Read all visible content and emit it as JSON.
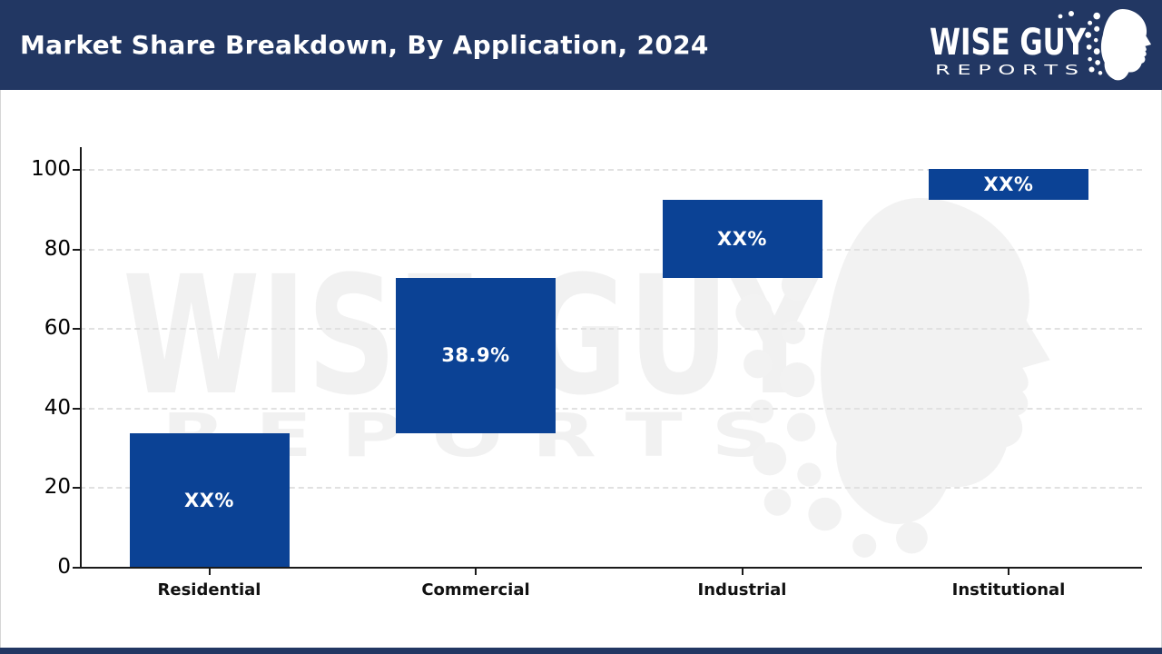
{
  "header": {
    "title": "Market Share Breakdown, By Application, 2024",
    "logo": {
      "line1": "WISE GUY",
      "line2": "R E P O R T S"
    }
  },
  "watermark": {
    "line1": "WISE GUY",
    "line2": "R E P O R T S"
  },
  "chart_data": {
    "type": "bar",
    "subtype": "floating-waterfall",
    "title": "Market Share Breakdown, By Application, 2024",
    "categories": [
      "Residential",
      "Commercial",
      "Industrial",
      "Institutional"
    ],
    "bars": [
      {
        "category": "Residential",
        "start": 0,
        "end": 33.9,
        "label": "XX%"
      },
      {
        "category": "Commercial",
        "start": 33.9,
        "end": 72.8,
        "label": "38.9%"
      },
      {
        "category": "Industrial",
        "start": 72.8,
        "end": 92.5,
        "label": "XX%"
      },
      {
        "category": "Institutional",
        "start": 92.5,
        "end": 100.2,
        "label": "XX%"
      }
    ],
    "yticks": [
      0,
      20,
      40,
      60,
      80,
      100
    ],
    "ylim": [
      0,
      105
    ],
    "xlabel": "",
    "ylabel": "",
    "grid": "horizontal-dashed",
    "legend": "none"
  },
  "colors": {
    "header_bg": "#223763",
    "footer_bg": "#223763",
    "bar": "#0b4295",
    "bar_label": "#ffffff",
    "grid": "#e1e1e1",
    "axis": "#1a1a1a",
    "watermark": "#f1f1f1"
  }
}
